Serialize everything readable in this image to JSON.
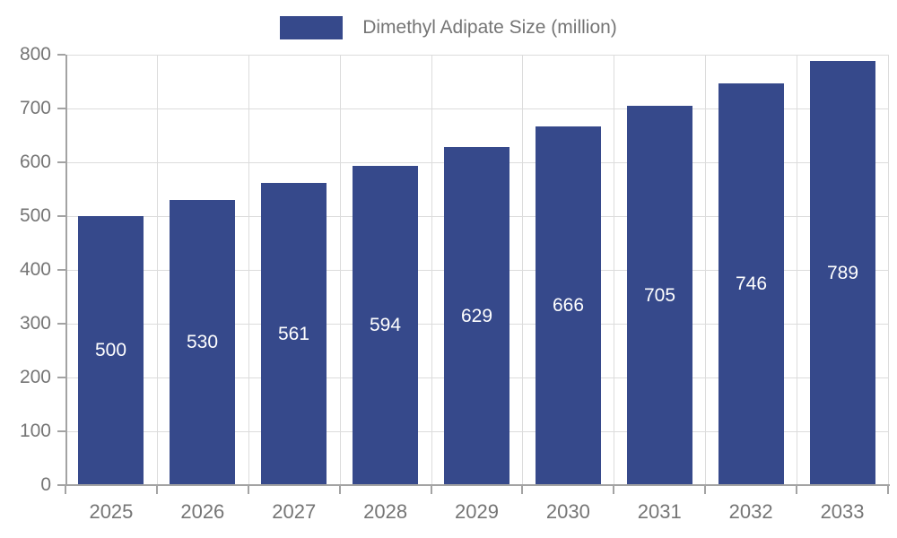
{
  "chart_data": {
    "type": "bar",
    "series_name": "Dimethyl Adipate Size (million)",
    "categories": [
      "2025",
      "2026",
      "2027",
      "2028",
      "2029",
      "2030",
      "2031",
      "2032",
      "2033"
    ],
    "values": [
      500,
      530,
      561,
      594,
      629,
      666,
      705,
      746,
      789
    ],
    "title": "",
    "xlabel": "",
    "ylabel": "",
    "ylim": [
      0,
      800
    ],
    "ytick_step": 100,
    "grid": true,
    "legend_position": "top",
    "value_labels": "inside-center"
  },
  "colors": {
    "bar": "#36498b",
    "grid": "#dcdcdc",
    "axis": "#a3a3a3",
    "tick_text": "#757575",
    "legend_text": "#757575",
    "value_label_text": "#ffffff",
    "background": "#ffffff"
  }
}
